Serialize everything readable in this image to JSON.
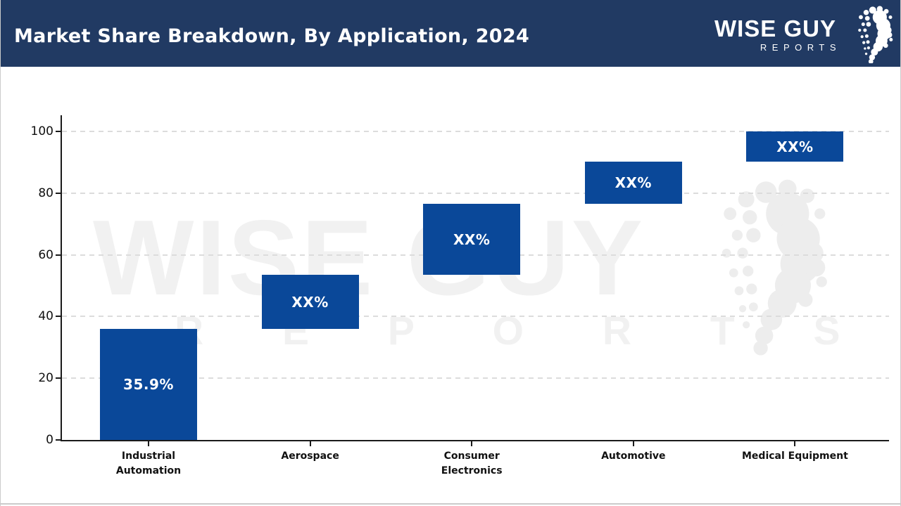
{
  "header": {
    "title": "Market Share Breakdown, By Application, 2024",
    "bg_color": "#213a63",
    "logo": {
      "line1": "WISE GUY",
      "line2": "REPORTS",
      "icon": "dotted-head-profile"
    }
  },
  "watermark": {
    "line1": "WISE GUY",
    "line2": "R E P O R T S",
    "icon": "dotted-head-profile"
  },
  "chart_data": {
    "type": "bar",
    "subtype": "waterfall",
    "title": "Market Share Breakdown, By Application, 2024",
    "xlabel": "",
    "ylabel": "",
    "ylim": [
      0,
      105
    ],
    "yticks": [
      0,
      20,
      40,
      60,
      80,
      100
    ],
    "grid": "dashed-horizontal",
    "legend": "none",
    "bar_color": "#0a4899",
    "label_color": "#ffffff",
    "categories": [
      "Industrial\nAutomation",
      "Aerospace",
      "Consumer\nElectronics",
      "Automotive",
      "Medical Equipment"
    ],
    "segments": [
      {
        "category": "Industrial\nAutomation",
        "start": 0,
        "end": 35.9,
        "label": "35.9%"
      },
      {
        "category": "Aerospace",
        "start": 35.9,
        "end": 53.5,
        "label": "XX%"
      },
      {
        "category": "Consumer\nElectronics",
        "start": 53.5,
        "end": 76.5,
        "label": "XX%"
      },
      {
        "category": "Automotive",
        "start": 76.5,
        "end": 90.1,
        "label": "XX%"
      },
      {
        "category": "Medical Equipment",
        "start": 90.1,
        "end": 100.0,
        "label": "XX%"
      }
    ]
  }
}
